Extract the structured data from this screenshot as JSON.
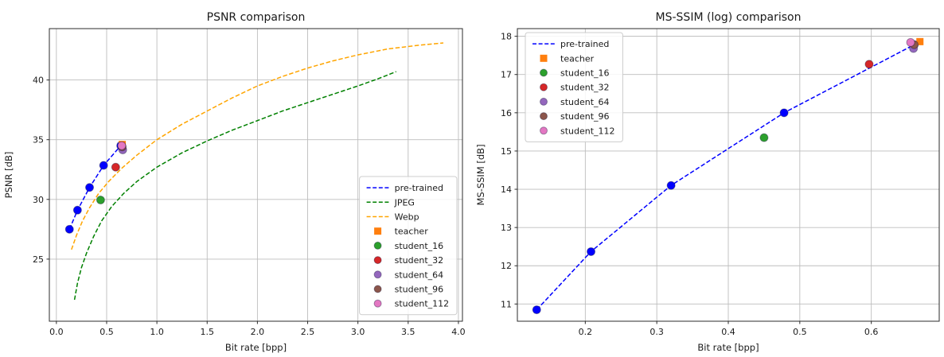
{
  "figure": {
    "background": "#ffffff",
    "grid_color": "#bdbdbd",
    "spine_color": "#2b2b2b"
  },
  "chart_data": [
    {
      "type": "line",
      "title": "PSNR comparison",
      "xlabel": "Bit rate [bpp]",
      "ylabel": "PSNR [dB]",
      "xlim": [
        -0.07,
        4.04
      ],
      "ylim": [
        19.8,
        44.3
      ],
      "xticks": [
        0.0,
        0.5,
        1.0,
        1.5,
        2.0,
        2.5,
        3.0,
        3.5,
        4.0
      ],
      "xtick_labels": [
        "0.0",
        "0.5",
        "1.0",
        "1.5",
        "2.0",
        "2.5",
        "3.0",
        "3.5",
        "4.0"
      ],
      "yticks": [
        25,
        30,
        35,
        40
      ],
      "ytick_labels": [
        "25",
        "30",
        "35",
        "40"
      ],
      "grid": true,
      "legend_position": "center right",
      "series": [
        {
          "name": "pre-trained",
          "kind": "line",
          "dashed": true,
          "color": "#0000ff",
          "marker": "circle",
          "points": [
            [
              0.13,
              27.5
            ],
            [
              0.21,
              29.1
            ],
            [
              0.33,
              31.0
            ],
            [
              0.47,
              32.85
            ],
            [
              0.64,
              34.5
            ]
          ]
        },
        {
          "name": "JPEG",
          "kind": "line",
          "dashed": true,
          "color": "#008000",
          "points": [
            [
              0.18,
              21.6
            ],
            [
              0.21,
              23.0
            ],
            [
              0.25,
              24.3
            ],
            [
              0.3,
              25.5
            ],
            [
              0.37,
              26.9
            ],
            [
              0.45,
              28.2
            ],
            [
              0.55,
              29.4
            ],
            [
              0.67,
              30.5
            ],
            [
              0.8,
              31.5
            ],
            [
              1.0,
              32.7
            ],
            [
              1.25,
              33.9
            ],
            [
              1.5,
              34.9
            ],
            [
              1.75,
              35.8
            ],
            [
              2.0,
              36.6
            ],
            [
              2.25,
              37.4
            ],
            [
              2.5,
              38.1
            ],
            [
              2.75,
              38.8
            ],
            [
              3.0,
              39.5
            ],
            [
              3.2,
              40.1
            ],
            [
              3.38,
              40.7
            ]
          ]
        },
        {
          "name": "Webp",
          "kind": "line",
          "dashed": true,
          "color": "#ffa500",
          "points": [
            [
              0.15,
              25.8
            ],
            [
              0.2,
              27.0
            ],
            [
              0.26,
              28.2
            ],
            [
              0.33,
              29.3
            ],
            [
              0.42,
              30.5
            ],
            [
              0.52,
              31.5
            ],
            [
              0.65,
              32.6
            ],
            [
              0.8,
              33.7
            ],
            [
              1.0,
              35.0
            ],
            [
              1.25,
              36.3
            ],
            [
              1.5,
              37.4
            ],
            [
              1.75,
              38.5
            ],
            [
              2.0,
              39.5
            ],
            [
              2.25,
              40.3
            ],
            [
              2.5,
              41.0
            ],
            [
              2.75,
              41.6
            ],
            [
              3.0,
              42.1
            ],
            [
              3.3,
              42.6
            ],
            [
              3.6,
              42.9
            ],
            [
              3.85,
              43.1
            ]
          ]
        },
        {
          "name": "teacher",
          "kind": "scatter",
          "color": "#ff7f0e",
          "marker": "square",
          "points": [
            [
              0.655,
              34.6
            ]
          ]
        },
        {
          "name": "student_16",
          "kind": "scatter",
          "color": "#2ca02c",
          "marker": "circle",
          "points": [
            [
              0.44,
              29.95
            ]
          ]
        },
        {
          "name": "student_32",
          "kind": "scatter",
          "color": "#d62728",
          "marker": "circle",
          "points": [
            [
              0.59,
              32.7
            ]
          ]
        },
        {
          "name": "student_64",
          "kind": "scatter",
          "color": "#9467bd",
          "marker": "circle",
          "points": [
            [
              0.66,
              34.15
            ]
          ]
        },
        {
          "name": "student_96",
          "kind": "scatter",
          "color": "#8c564b",
          "marker": "circle",
          "points": [
            [
              0.655,
              34.4
            ]
          ]
        },
        {
          "name": "student_112",
          "kind": "scatter",
          "color": "#e377c2",
          "marker": "circle",
          "points": [
            [
              0.65,
              34.5
            ]
          ]
        }
      ]
    },
    {
      "type": "line",
      "title": "MS-SSIM (log) comparison",
      "xlabel": "Bit rate [bpp]",
      "ylabel": "MS-SSIM [dB]",
      "xlim": [
        0.105,
        0.695
      ],
      "ylim": [
        10.55,
        18.2
      ],
      "xticks": [
        0.2,
        0.3,
        0.4,
        0.5,
        0.6
      ],
      "xtick_labels": [
        "0.2",
        "0.3",
        "0.4",
        "0.5",
        "0.6"
      ],
      "yticks": [
        11,
        12,
        13,
        14,
        15,
        16,
        17,
        18
      ],
      "ytick_labels": [
        "11",
        "12",
        "13",
        "14",
        "15",
        "16",
        "17",
        "18"
      ],
      "grid": true,
      "legend_position": "upper left",
      "series": [
        {
          "name": "pre-trained",
          "kind": "line",
          "dashed": true,
          "color": "#0000ff",
          "marker": "circle",
          "points": [
            [
              0.132,
              10.85
            ],
            [
              0.208,
              12.37
            ],
            [
              0.32,
              14.1
            ],
            [
              0.478,
              16.0
            ],
            [
              0.66,
              17.78
            ]
          ]
        },
        {
          "name": "teacher",
          "kind": "scatter",
          "color": "#ff7f0e",
          "marker": "square",
          "points": [
            [
              0.668,
              17.86
            ]
          ]
        },
        {
          "name": "student_16",
          "kind": "scatter",
          "color": "#2ca02c",
          "marker": "circle",
          "points": [
            [
              0.45,
              15.35
            ]
          ]
        },
        {
          "name": "student_32",
          "kind": "scatter",
          "color": "#d62728",
          "marker": "circle",
          "points": [
            [
              0.597,
              17.27
            ]
          ]
        },
        {
          "name": "student_64",
          "kind": "scatter",
          "color": "#9467bd",
          "marker": "circle",
          "points": [
            [
              0.659,
              17.68
            ]
          ]
        },
        {
          "name": "student_96",
          "kind": "scatter",
          "color": "#8c564b",
          "marker": "circle",
          "points": [
            [
              0.66,
              17.78
            ]
          ]
        },
        {
          "name": "student_112",
          "kind": "scatter",
          "color": "#e377c2",
          "marker": "circle",
          "points": [
            [
              0.655,
              17.84
            ]
          ]
        }
      ]
    }
  ]
}
